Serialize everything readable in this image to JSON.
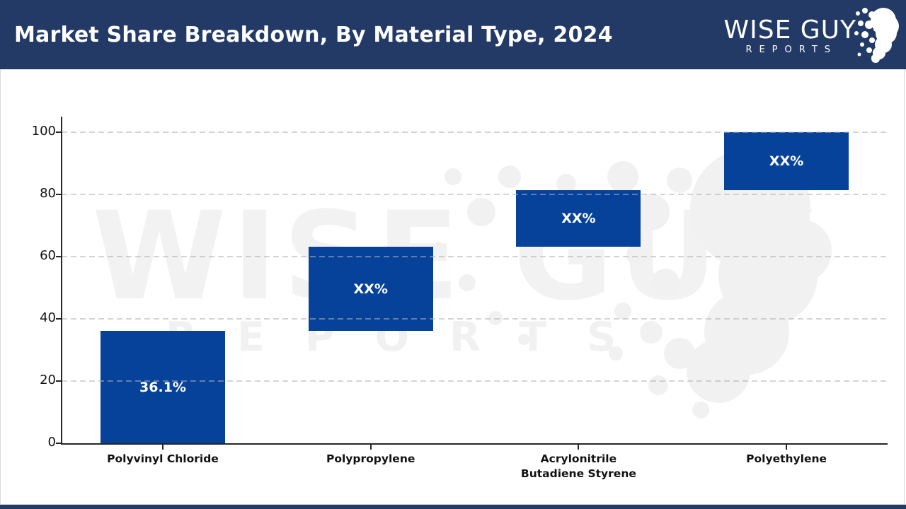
{
  "header": {
    "title": "Market Share Breakdown, By Material Type, 2024",
    "bg_color": "#233a66",
    "logo": {
      "line1": "WISE GUY",
      "line2": "REPORTS"
    }
  },
  "watermark": {
    "line1": "WISE GUY",
    "line2": "REPORTS",
    "color": "#f2f2f2"
  },
  "footer": {
    "bg_color": "#233a66"
  },
  "chart_data": {
    "type": "bar",
    "subtype": "waterfall",
    "title": "Market Share Breakdown, By Material Type, 2024",
    "categories": [
      "Polyvinyl Chloride",
      "Polypropylene",
      "Acrylonitrile Butadiene Styrene",
      "Polyethylene"
    ],
    "category_label_lines": [
      [
        "Polyvinyl Chloride"
      ],
      [
        "Polypropylene"
      ],
      [
        "Acrylonitrile",
        "Butadiene Styrene"
      ],
      [
        "Polyethylene"
      ]
    ],
    "segments": [
      {
        "category": "Polyvinyl Chloride",
        "start": 0,
        "end": 36.1,
        "label": "36.1%"
      },
      {
        "category": "Polypropylene",
        "start": 36.1,
        "end": 63.1,
        "label": "XX%"
      },
      {
        "category": "Acrylonitrile Butadiene Styrene",
        "start": 63.1,
        "end": 81.4,
        "label": "XX%"
      },
      {
        "category": "Polyethylene",
        "start": 81.4,
        "end": 100,
        "label": "XX%"
      }
    ],
    "yticks": [
      0,
      20,
      40,
      60,
      80,
      100
    ],
    "ylim": [
      0,
      105
    ],
    "xlabel": "",
    "ylabel": "",
    "grid": "horizontal-dashed",
    "legend": "none",
    "bar_color": "#07429a",
    "bar_label_color": "#ffffff",
    "axis_color": "#262626"
  }
}
